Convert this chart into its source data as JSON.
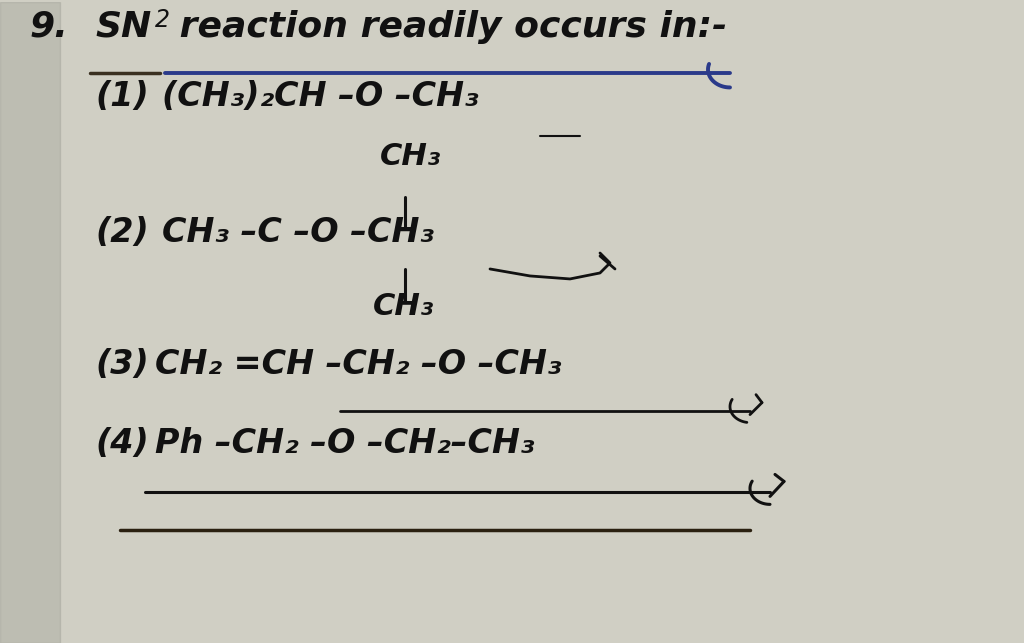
{
  "bg_color": "#d0cfc4",
  "text_color": "#1a1a1a",
  "dark_text": "#111111",
  "blue_color": "#2a3a8a",
  "fig_w": 10.24,
  "fig_h": 6.43,
  "dpi": 100,
  "title_num": "9.",
  "sn_text": "SN",
  "sn_super": "2",
  "title_rest": " reaction readily occurs in:-",
  "opt1_num": "(1)",
  "opt1_formula": "(CH₃)₂CH –O –CH₃",
  "opt2_num": "(2)",
  "opt2_ch3_top": "CH₃",
  "opt2_formula": "CH₃ –C –O –CH₃",
  "opt2_ch3_bot": "CH₃",
  "opt3_num": "(3)",
  "opt3_formula": "CH₂ =CH –CH₂ –O –CH₃",
  "opt4_num": "(4)",
  "opt4_formula": "Ph –CH₂ –O –CH₂–CH₃"
}
